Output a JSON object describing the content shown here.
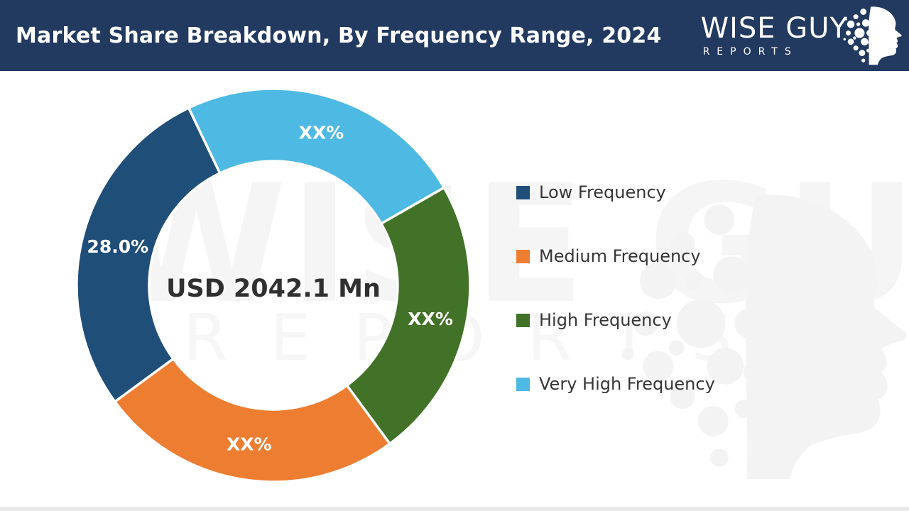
{
  "header": {
    "title": "Market Share Breakdown, By Frequency Range, 2024",
    "background": "#223960",
    "logo": {
      "line1": "WISE GUY",
      "line2": "REPORTS"
    }
  },
  "watermark": {
    "line1": "WISE GUY",
    "line2": "REPORTS"
  },
  "chart_data": {
    "type": "pie",
    "title": "Market Share Breakdown, By Frequency Range, 2024",
    "donut": true,
    "center_label": "USD 2042.1 Mn",
    "inner_radius_ratio": 0.632,
    "start_angle_deg": 334.5,
    "direction": "counter-clockwise",
    "categories": [
      "Low Frequency",
      "Medium Frequency",
      "High Frequency",
      "Very High Frequency"
    ],
    "values": [
      28.0,
      25.0,
      23.2,
      23.8
    ],
    "slice_labels": [
      "28.0%",
      "XX%",
      "XX%",
      "XX%"
    ],
    "colors": [
      "#1F4E79",
      "#ED7D31",
      "#417227",
      "#4EB9E2"
    ],
    "slice_label_color": "#ffffff",
    "legend_position": "right"
  },
  "colors": {
    "header_bg": "#223960",
    "page_bg": "#ffffff",
    "bottom_bar": "#e9e9e9",
    "watermark": "#f5f5f5",
    "center_text": "#303030",
    "legend_text": "#363636"
  }
}
